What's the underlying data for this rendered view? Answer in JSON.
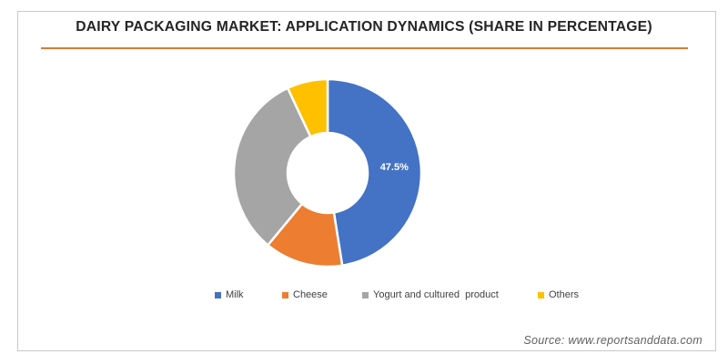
{
  "title": "DAIRY PACKAGING MARKET: APPLICATION DYNAMICS (SHARE IN PERCENTAGE)",
  "source": {
    "label": "Source: www.reportsanddata.com"
  },
  "colors": {
    "title_text": "#252525",
    "title_underline": "#d97a34",
    "frame_border": "#c9c9c9",
    "legend_text": "#404040",
    "source_text": "#5f5f5f",
    "slice_label_text": "#ffffff"
  },
  "chart_data": {
    "type": "pie",
    "subtype": "donut",
    "title": "DAIRY PACKAGING MARKET: APPLICATION DYNAMICS (SHARE IN PERCENTAGE)",
    "categories": [
      "Milk",
      "Cheese",
      "Yogurt and cultured  product",
      "Others"
    ],
    "values": [
      47.5,
      13.5,
      32,
      7
    ],
    "colors": [
      "#4472c4",
      "#ed7d31",
      "#a5a5a5",
      "#ffc000"
    ],
    "data_labels": [
      "47.5%",
      null,
      null,
      null
    ],
    "start_angle_deg": 0,
    "direction": "clockwise",
    "inner_radius_ratio": 0.43,
    "grid": false,
    "legend_position": "bottom"
  }
}
